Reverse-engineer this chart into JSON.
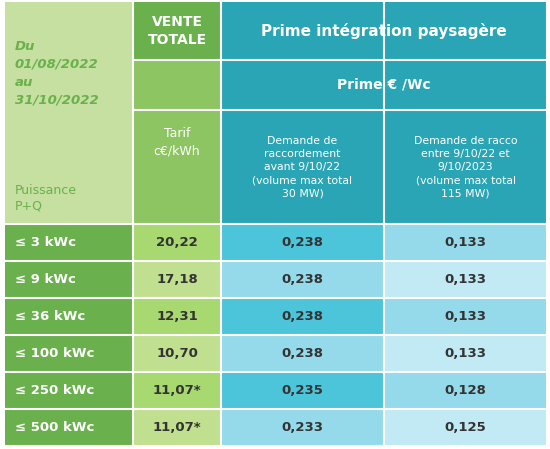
{
  "row_labels": [
    "≤ 3 kWc",
    "≤ 9 kWc",
    "≤ 36 kWc",
    "≤ 100 kWc",
    "≤ 250 kWc",
    "≤ 500 kWc"
  ],
  "col2_values": [
    "20,22",
    "17,18",
    "12,31",
    "10,70",
    "11,07*",
    "11,07*"
  ],
  "col3a_values": [
    "0,238",
    "0,238",
    "0,238",
    "0,238",
    "0,235",
    "0,233"
  ],
  "col3b_values": [
    "0,133",
    "0,133",
    "0,133",
    "0,133",
    "0,128",
    "0,125"
  ],
  "header_col1_date": "Du\n01/08/2022\nau\n31/10/2022",
  "header_col1_sub": "Puissance\nP+Q",
  "header_col2_top": "VENTE\nTOTALE",
  "header_col2_sub": "Tarif\nc€/kWh",
  "header_col3_title": "Prime intégration paysagère",
  "header_col3_sub": "Prime € /Wc",
  "header_col3a_desc": "Demande de\nraccordement\navant 9/10/22\n(volume max total\n30 MW)",
  "header_col3b_desc": "Demande de racco\nentre 9/10/22 et\n9/10/2023\n(volume max total\n115 MW)",
  "color_col1_bg": "#c5e0a0",
  "color_col2_top": "#6ab04c",
  "color_col2_sub": "#8dc563",
  "color_col3_header": "#2aa5b5",
  "color_row_green": "#6ab04c",
  "color_row_col2_even": "#c5e0a0",
  "color_row_col2_odd": "#daefc0",
  "color_data_blue1": "#5bc8df",
  "color_data_blue2": "#90dcee",
  "color_data_blue3": "#bee8f4",
  "color_white": "#ffffff",
  "color_text_dark": "#333333",
  "color_text_white": "#ffffff",
  "color_text_green": "#6ab04c",
  "fig_w": 5.5,
  "fig_h": 4.49,
  "dpi": 100
}
